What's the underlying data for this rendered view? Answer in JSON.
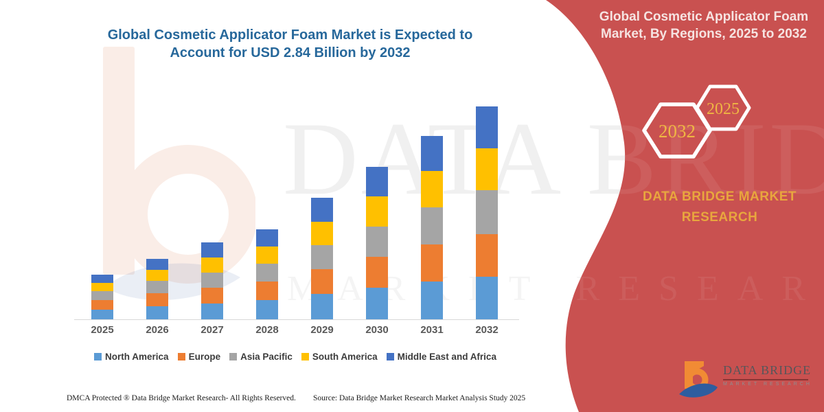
{
  "title": "Global Cosmetic Applicator Foam Market is Expected to Account for USD 2.84 Billion by 2032",
  "right_panel": {
    "heading": "Global Cosmetic Applicator Foam Market, By Regions, 2025 to 2032",
    "hex_year_left": "2032",
    "hex_year_right": "2025",
    "brand_caption": "DATA BRIDGE MARKET RESEARCH",
    "accent_red": "#C95150",
    "accent_yellow": "#EFB643"
  },
  "watermark": {
    "line1": "DATA BRIDGE",
    "line2": "MARKET RESEARCH"
  },
  "logo": {
    "name": "DATA BRIDGE",
    "subtitle": "MARKET RESEARCH"
  },
  "footer": {
    "left": "DMCA Protected ® Data Bridge Market Research-  All Rights Reserved.",
    "right": "Source: Data Bridge Market Research  Market Analysis Study 2025"
  },
  "chart_data": {
    "type": "bar",
    "stacked": true,
    "title": "Global Cosmetic Applicator Foam Market, By Regions, 2025 to 2032",
    "unit": "USD Billion",
    "categories": [
      "2025",
      "2026",
      "2027",
      "2028",
      "2029",
      "2030",
      "2031",
      "2032"
    ],
    "series": [
      {
        "name": "North America",
        "color": "#5B9BD5",
        "values": [
          0.13,
          0.17,
          0.21,
          0.26,
          0.34,
          0.42,
          0.5,
          0.57
        ]
      },
      {
        "name": "Europe",
        "color": "#ED7D31",
        "values": [
          0.13,
          0.17,
          0.21,
          0.25,
          0.33,
          0.41,
          0.49,
          0.57
        ]
      },
      {
        "name": "Asia Pacific",
        "color": "#A5A5A5",
        "values": [
          0.12,
          0.16,
          0.2,
          0.24,
          0.32,
          0.4,
          0.49,
          0.58
        ]
      },
      {
        "name": "South America",
        "color": "#FFC000",
        "values": [
          0.11,
          0.15,
          0.2,
          0.23,
          0.31,
          0.4,
          0.48,
          0.56
        ]
      },
      {
        "name": "Middle East and Africa",
        "color": "#4472C4",
        "values": [
          0.11,
          0.15,
          0.2,
          0.23,
          0.32,
          0.39,
          0.47,
          0.56
        ]
      }
    ],
    "totals": [
      0.6,
      0.8,
      1.02,
      1.21,
      1.62,
      2.02,
      2.43,
      2.84
    ],
    "highlight_total_final": "2.84",
    "ylim": [
      0,
      2.9
    ],
    "grid": false,
    "legend_position": "bottom",
    "xlabel": "",
    "ylabel": ""
  }
}
